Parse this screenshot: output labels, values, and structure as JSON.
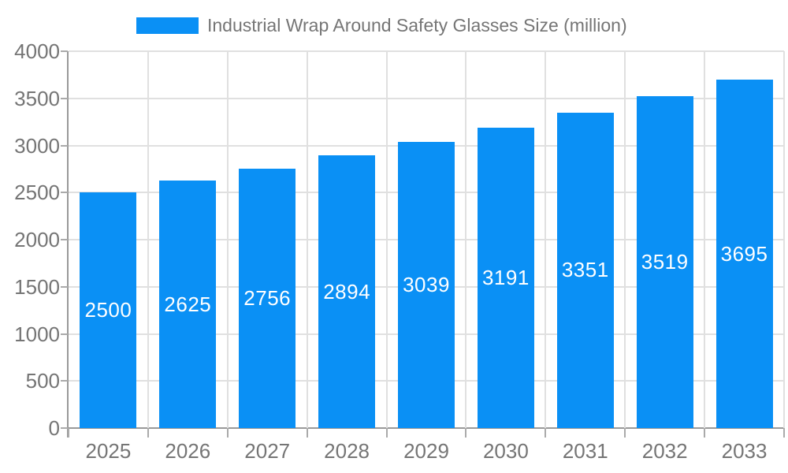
{
  "legend": {
    "label": "Industrial Wrap Around Safety Glasses Size (million)"
  },
  "colors": {
    "bar": "#0A90F5",
    "grid": "#E0E0E0",
    "axis": "#999999",
    "tick": "#AAAAAA",
    "text": "#757575",
    "bar_label": "#FFFFFF",
    "background": "#FFFFFF"
  },
  "chart_data": {
    "type": "bar",
    "title": "Industrial Wrap Around Safety Glasses Size (million)",
    "categories": [
      "2025",
      "2026",
      "2027",
      "2028",
      "2029",
      "2030",
      "2031",
      "2032",
      "2033"
    ],
    "values": [
      2500,
      2625,
      2756,
      2894,
      3039,
      3191,
      3351,
      3519,
      3695
    ],
    "xlabel": "",
    "ylabel": "",
    "ylim": [
      0,
      4000
    ],
    "y_ticks": [
      0,
      500,
      1000,
      1500,
      2000,
      2500,
      3000,
      3500,
      4000
    ],
    "grid": true,
    "legend_position": "top",
    "bar_labels_visible": true
  }
}
